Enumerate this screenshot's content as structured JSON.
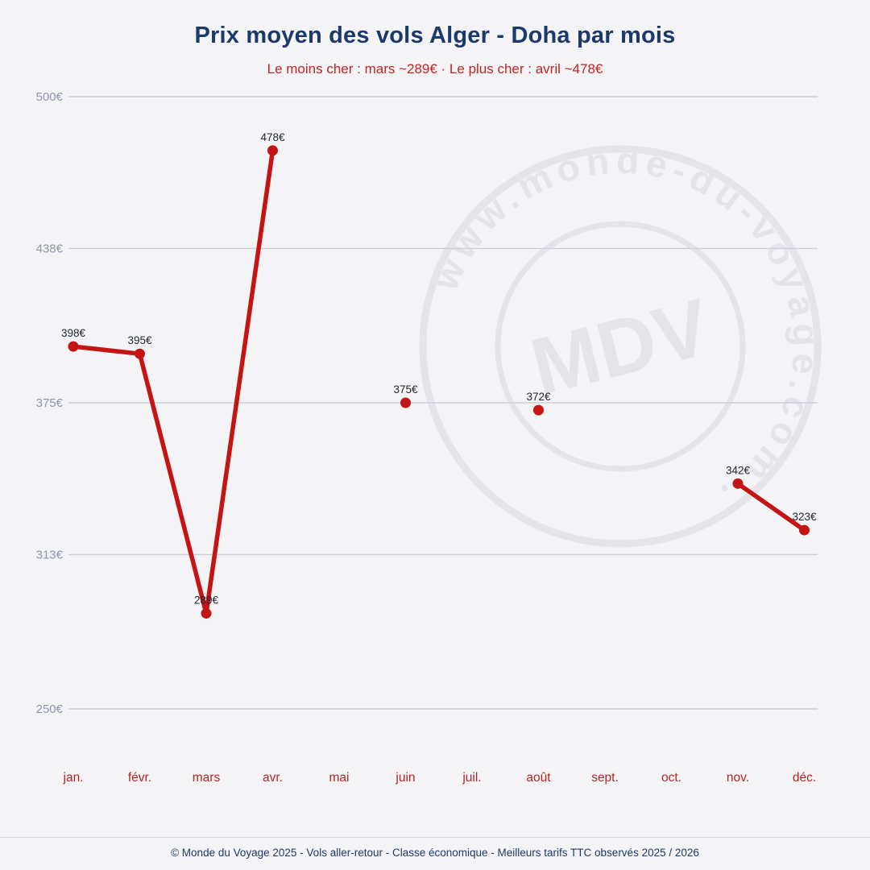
{
  "title": "Prix moyen des vols Alger - Doha par mois",
  "subtitle": "Le moins cher : mars ~289€ · Le plus cher : avril ~478€",
  "footer": "© Monde du Voyage 2025 - Vols aller-retour - Classe économique - Meilleurs tarifs TTC observés 2025 / 2026",
  "watermark": {
    "ring": "www.monde-du-voyage.com .",
    "badge": "MDV"
  },
  "colors": {
    "background": "#f4f4f6",
    "title": "#1b3a6b",
    "accent": "#c41414",
    "subtitle_red": "#c32323",
    "month_red": "#b42525",
    "axis": "#8b96a9",
    "grid": "#c9cdd9",
    "value_label": "#1f2430",
    "watermark": "#e2e2e9",
    "footer_line": "#d9d9de"
  },
  "chart_data": {
    "type": "line",
    "title": "Prix moyen des vols Alger - Doha par mois",
    "categories": [
      "jan.",
      "févr.",
      "mars",
      "avr.",
      "mai",
      "juin",
      "juil.",
      "août",
      "sept.",
      "oct.",
      "nov.",
      "déc."
    ],
    "values": [
      398,
      395,
      289,
      478,
      null,
      375,
      null,
      372,
      null,
      null,
      342,
      323
    ],
    "unit": "€",
    "xlabel": "",
    "ylabel": "",
    "yticks": [
      500,
      438,
      375,
      313,
      250
    ],
    "ylim": [
      250,
      500
    ],
    "grid": true,
    "legend": false,
    "notes": "Points exist only for months with data; consecutive months with data are connected by thick red line segments."
  }
}
